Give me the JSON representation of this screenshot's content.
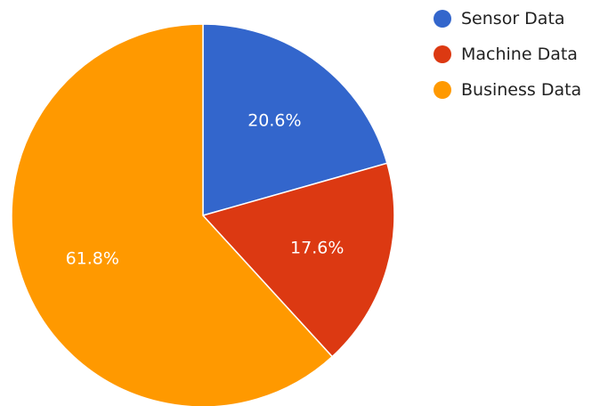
{
  "chart_data": {
    "type": "pie",
    "categories": [
      "Sensor Data",
      "Machine Data",
      "Business Data"
    ],
    "values": [
      20.6,
      17.6,
      61.8
    ],
    "labels": [
      "20.6%",
      "17.6%",
      "61.8%"
    ],
    "colors": [
      "#3366cc",
      "#dc3912",
      "#ff9900"
    ],
    "start_angle_deg": 0,
    "direction": "clockwise",
    "legend_position": "top-right",
    "title": ""
  }
}
